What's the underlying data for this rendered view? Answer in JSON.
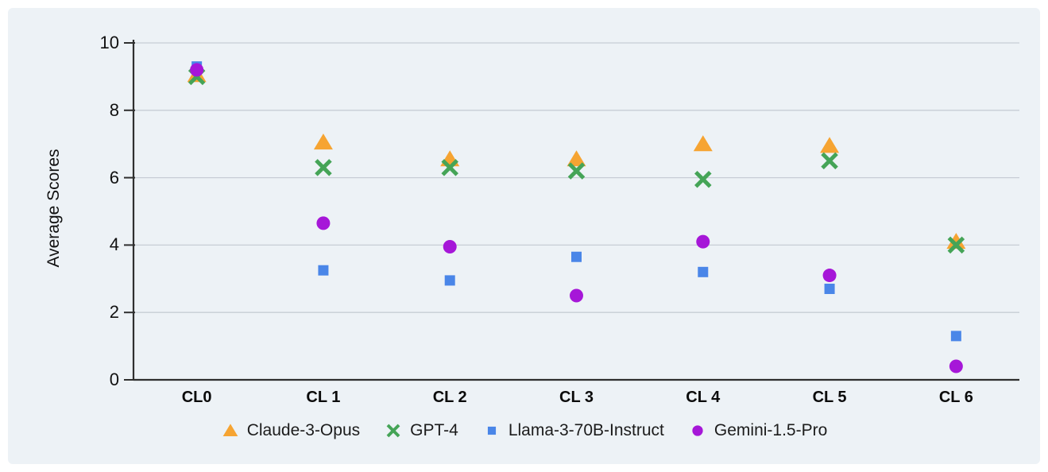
{
  "chart_data": {
    "type": "scatter",
    "title": "",
    "xlabel": "",
    "ylabel": "Average Scores",
    "ylim": [
      0,
      10
    ],
    "yticks": [
      0,
      2,
      4,
      6,
      8,
      10
    ],
    "grid": true,
    "legend_position": "bottom",
    "categories": [
      "CL0",
      "CL 1",
      "CL 2",
      "CL 3",
      "CL 4",
      "CL 5",
      "CL 6"
    ],
    "series": [
      {
        "name": "Claude-3-Opus",
        "marker": "triangle",
        "color": "#F6A432",
        "values": [
          9.05,
          7.05,
          6.55,
          6.55,
          7.0,
          6.95,
          4.1
        ]
      },
      {
        "name": "GPT-4",
        "marker": "x",
        "color": "#45A457",
        "values": [
          9.0,
          6.3,
          6.3,
          6.2,
          5.95,
          6.5,
          4.0
        ]
      },
      {
        "name": "Llama-3-70B-Instruct",
        "marker": "square",
        "color": "#4A86E8",
        "values": [
          9.3,
          3.25,
          2.95,
          3.65,
          3.2,
          2.7,
          1.3
        ]
      },
      {
        "name": "Gemini-1.5-Pro",
        "marker": "circle",
        "color": "#A617D8",
        "values": [
          9.2,
          4.65,
          3.95,
          2.5,
          4.1,
          3.1,
          0.4
        ]
      }
    ]
  },
  "colors": {
    "panel": "#EDF2F6",
    "grid": "#C7CDD5",
    "axis": "#2F2F2F",
    "tick_text": "#111111",
    "category_text": "#0B0B0B",
    "legend_text": "#1C1C1C"
  }
}
